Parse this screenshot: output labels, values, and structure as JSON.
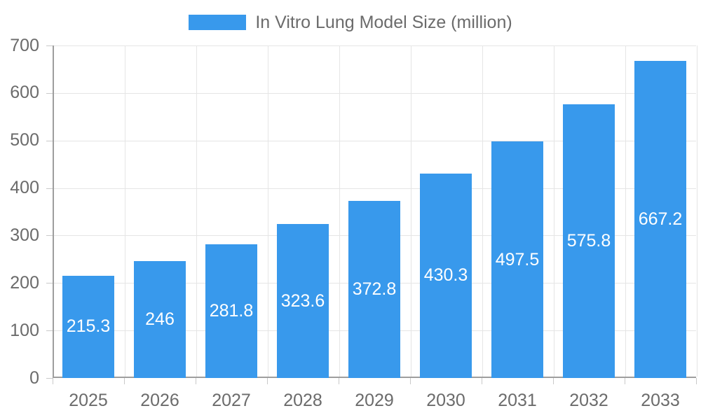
{
  "legend": {
    "label": "In Vitro Lung Model Size (million)"
  },
  "colors": {
    "bar": "#3899ec",
    "axis_border": "#9e9e9e",
    "gridline": "#e5e5e5",
    "tick_mark": "#c9c9c9",
    "tick_text": "#6b6b6b",
    "bar_label_text": "#ffffff",
    "background": "#ffffff"
  },
  "chart_data": {
    "type": "bar",
    "title": "In Vitro Lung Model Size (million)",
    "categories": [
      "2025",
      "2026",
      "2027",
      "2028",
      "2029",
      "2030",
      "2031",
      "2032",
      "2033"
    ],
    "values": [
      215.3,
      246,
      281.8,
      323.6,
      372.8,
      430.3,
      497.5,
      575.8,
      667.2
    ],
    "value_labels": [
      "215.3",
      "246",
      "281.8",
      "323.6",
      "372.8",
      "430.3",
      "497.5",
      "575.8",
      "667.2"
    ],
    "xlabel": "",
    "ylabel": "",
    "ylim": [
      0,
      700
    ],
    "ytick_step": 100,
    "yticks": [
      0,
      100,
      200,
      300,
      400,
      500,
      600,
      700
    ],
    "grid": true,
    "legend_position": "top",
    "bar_label_position": "center-inside"
  }
}
